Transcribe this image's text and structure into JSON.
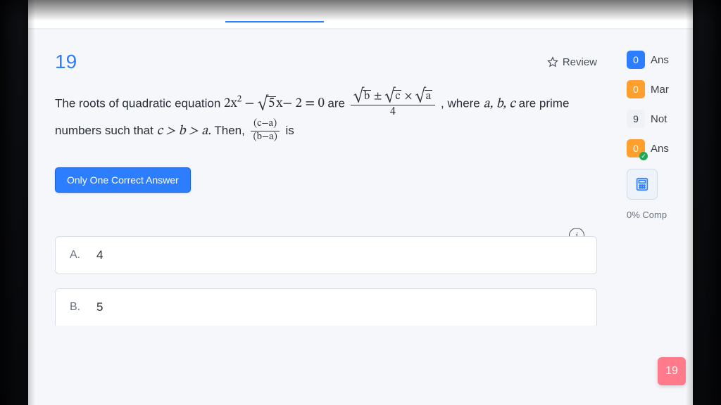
{
  "question": {
    "number": "19",
    "review_label": "Review",
    "text_prefix": "The roots of quadratic equation ",
    "eq_lhs_a": "2",
    "eq_lhs_var": "x",
    "eq_lhs_rad": "5",
    "eq_lhs_tail": "x− 2  =  0",
    "text_mid": " are ",
    "root_num_b": "b",
    "root_pm": " ± ",
    "root_num_c": "c",
    "root_times": " × ",
    "root_num_a": "a",
    "root_den": "4",
    "text_after_root": ", where ",
    "abc": "a, b, c",
    "text_tail1": " are prime numbers such that ",
    "ineq": "c > b > a.",
    "text_then": " Then, ",
    "frac2_num": "(c−a)",
    "frac2_den": "(b−a)",
    "text_is": " is",
    "answer_tag": "Only One Correct Answer"
  },
  "options": [
    {
      "letter": "A.",
      "value": "4"
    },
    {
      "letter": "B.",
      "value": "5"
    }
  ],
  "sidebar": {
    "stats": [
      {
        "count": "0",
        "label": "Ans",
        "bg": "#2d7eff",
        "tick": false
      },
      {
        "count": "0",
        "label": "Mar",
        "bg": "#ff9f2e",
        "tick": false
      },
      {
        "count": "9",
        "label": "Not",
        "bg": "#eef1f6",
        "fg": "#3a3e46",
        "tick": false
      },
      {
        "count": "0",
        "label": "Ans",
        "bg": "#ff9f2e",
        "tick": true
      }
    ],
    "progress": "0% Comp"
  },
  "float_badge": "19",
  "colors": {
    "accent": "#2d7eff",
    "page_bg": "#f5f7fa",
    "text": "#2a2e36",
    "option_border": "#d7dde6",
    "float_bg": "#ff7a8a"
  }
}
